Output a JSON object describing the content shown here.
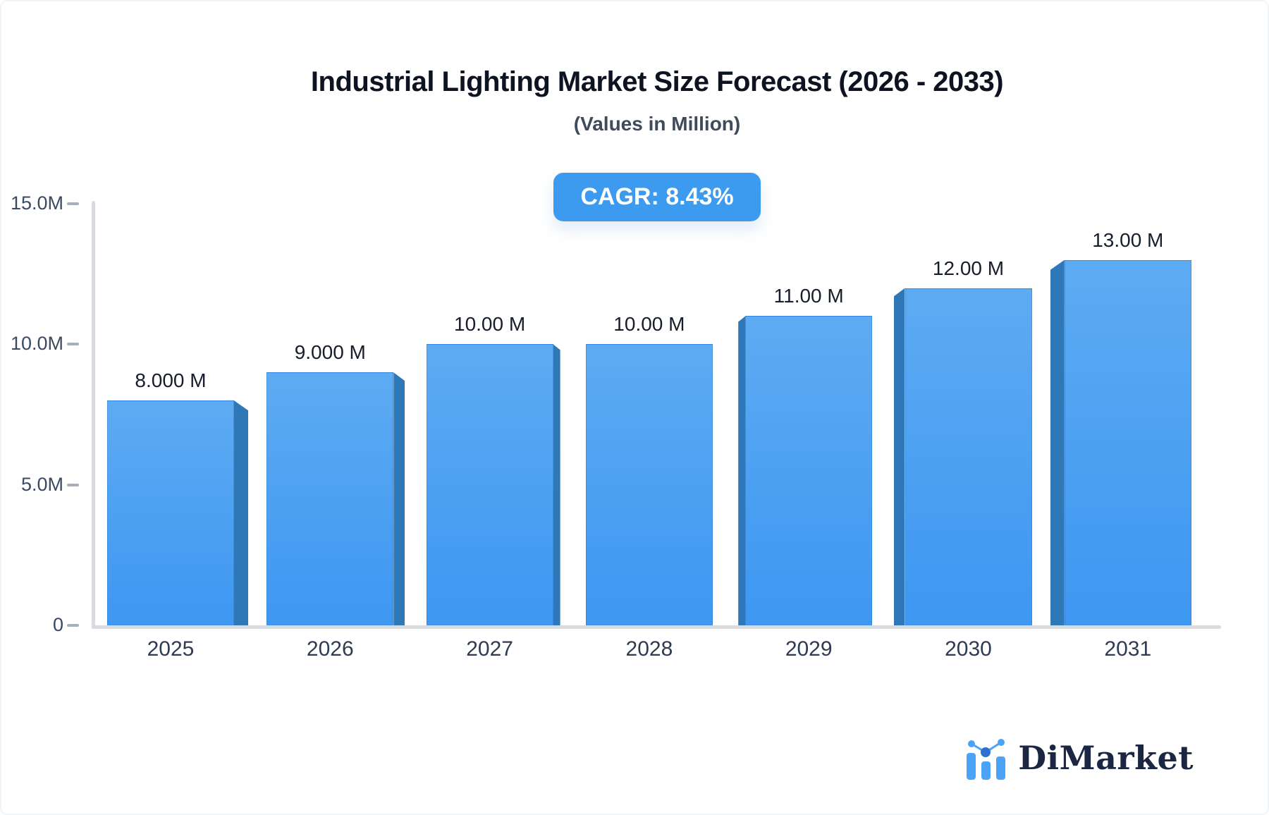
{
  "title": "Industrial Lighting Market Size Forecast (2026 - 2033)",
  "subtitle": "(Values in Million)",
  "badge": {
    "label": "CAGR: 8.43%",
    "bg": "#3d9bef"
  },
  "chart_data": {
    "type": "bar",
    "categories": [
      "2025",
      "2026",
      "2027",
      "2028",
      "2029",
      "2030",
      "2031"
    ],
    "values": [
      8,
      9,
      10,
      10,
      11,
      12,
      13
    ],
    "value_labels": [
      "8.000 M",
      "9.000 M",
      "10.00 M",
      "10.00 M",
      "11.00 M",
      "12.00 M",
      "13.00 M"
    ],
    "title": "Industrial Lighting Market Size Forecast (2026 - 2033)",
    "xlabel": "",
    "ylabel": "",
    "ylim": [
      0,
      15
    ],
    "yticks": [
      {
        "label": "15.0M",
        "value": 15
      },
      {
        "label": "10.0M",
        "value": 10
      },
      {
        "label": "5.0M",
        "value": 5
      },
      {
        "label": "0",
        "value": 0
      }
    ],
    "grid": false,
    "legend": false,
    "bar_color_top": "#5dabf2",
    "bar_color_bottom": "#3e97f2",
    "bar_side_color": "#2e78b8"
  },
  "logo": {
    "text": "DiMarket",
    "icon": "mini-bar-chart-icon",
    "icon_color": "#4aa3f7",
    "icon_dot_color": "#2f6fd0",
    "text_color": "#1b2642"
  },
  "colors": {
    "accent": "#3d9bef",
    "axis": "#d8dbe0",
    "tick_dash": "#a9afb8",
    "y_label": "#3b4a63",
    "x_label": "#2e3b52",
    "value_label": "#161d2b"
  }
}
